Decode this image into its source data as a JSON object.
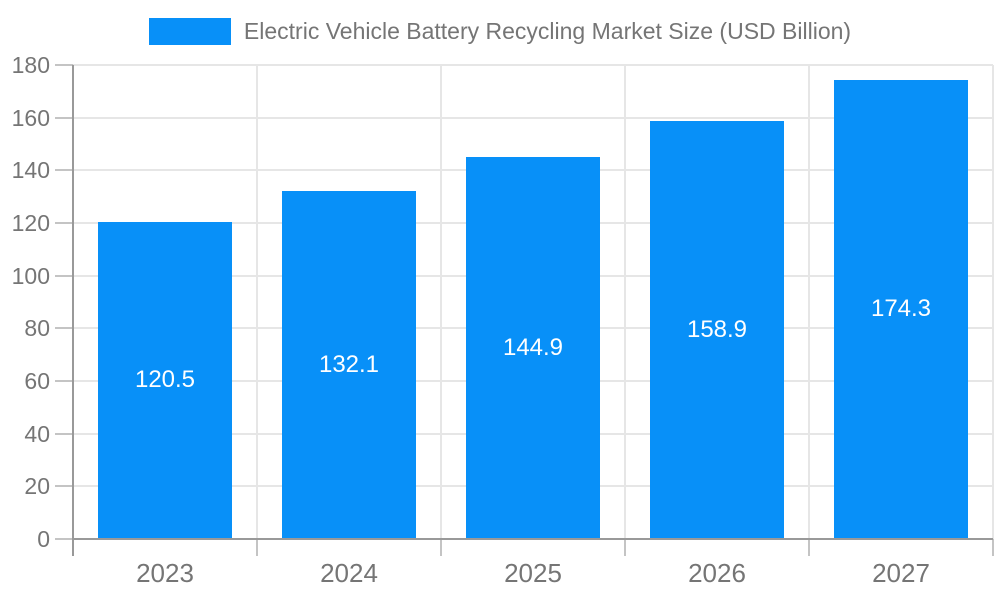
{
  "chart_data": {
    "type": "bar",
    "title": "Electric Vehicle Battery Recycling Market Size (USD Billion)",
    "categories": [
      "2023",
      "2024",
      "2025",
      "2026",
      "2027"
    ],
    "values": [
      120.5,
      132.1,
      144.9,
      158.9,
      174.3
    ],
    "series": [
      {
        "name": "Electric Vehicle Battery Recycling Market Size (USD Billion)",
        "values": [
          120.5,
          132.1,
          144.9,
          158.9,
          174.3
        ]
      }
    ],
    "xlabel": "",
    "ylabel": "",
    "ylim": [
      0,
      180
    ],
    "yticks": [
      0,
      20,
      40,
      60,
      80,
      100,
      120,
      140,
      160,
      180
    ],
    "grid": true,
    "legend_position": "top",
    "value_labels_inside_bars": true
  },
  "legend": {
    "label": "Electric Vehicle Battery Recycling Market Size (USD Billion)"
  },
  "colors": {
    "bar": "#0890f8",
    "grid": "#e6e6e6",
    "tick": "#c4c4c4",
    "axis": "#999999",
    "label_text": "#757575",
    "value_text": "#ffffff",
    "background": "#ffffff"
  }
}
